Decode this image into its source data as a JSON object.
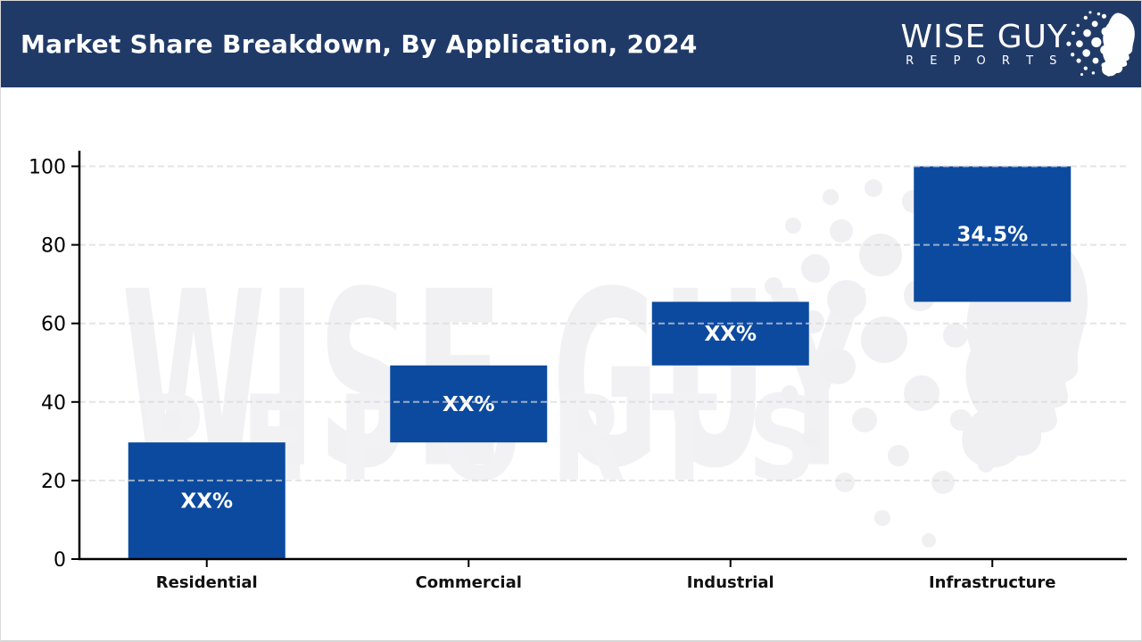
{
  "header": {
    "title": "Market Share Breakdown, By Application, 2024",
    "logo": {
      "line1": "WISE GUY",
      "line2": "R E P O R T S"
    }
  },
  "watermark": {
    "line1": "WISE GUY",
    "line2": "REPORTS"
  },
  "chart_data": {
    "type": "bar",
    "subtype": "waterfall",
    "title": "Market Share Breakdown, By Application, 2024",
    "categories": [
      "Residential",
      "Commercial",
      "Industrial",
      "Infrastructure"
    ],
    "series": [
      {
        "name": "Market Share (%)",
        "segments": [
          {
            "category": "Residential",
            "start": 0,
            "end": 29.7,
            "label": "XX%"
          },
          {
            "category": "Commercial",
            "start": 29.7,
            "end": 49.3,
            "label": "XX%"
          },
          {
            "category": "Industrial",
            "start": 49.3,
            "end": 65.5,
            "label": "XX%"
          },
          {
            "category": "Infrastructure",
            "start": 65.5,
            "end": 100,
            "label": "34.5%"
          }
        ]
      }
    ],
    "xlabel": "",
    "ylabel": "",
    "ylim": [
      0,
      104
    ],
    "yticks": [
      0,
      20,
      40,
      60,
      80,
      100
    ],
    "grid": "horizontal-dashed",
    "legend": "none",
    "bar_color": "#0c4a9f",
    "bar_label_color": "#ffffff",
    "axis_color": "#000000",
    "grid_color": "#d9d9d9"
  },
  "colors": {
    "header_bg": "#203a68",
    "page_border": "#d5d5d5",
    "watermark": "#f1f1f3"
  }
}
